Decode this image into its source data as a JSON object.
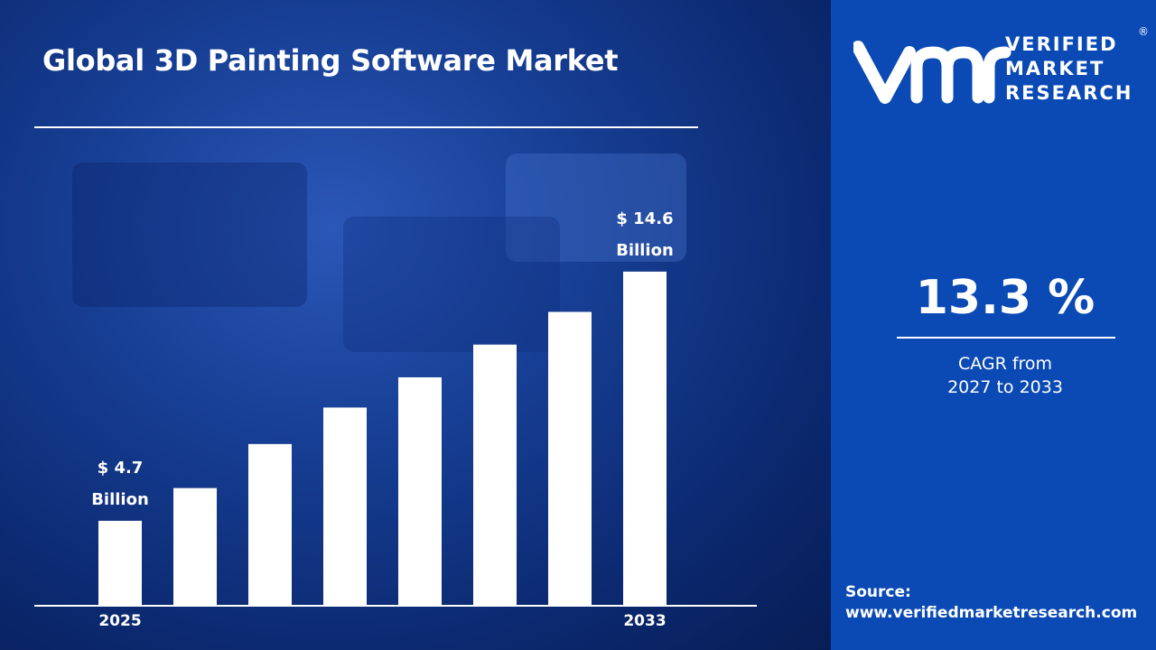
{
  "title": "Global 3D Painting Software Market",
  "logo": {
    "line1": "VERIFIED",
    "line2": "MARKET",
    "line3": "RESEARCH",
    "mark": "®"
  },
  "cagr": {
    "value": "13.3 %",
    "label_line1": "CAGR from",
    "label_line2": "2027 to 2033"
  },
  "source": {
    "label": "Source:",
    "url": "www.verifiedmarketresearch.com"
  },
  "colors": {
    "background": "#173f95",
    "panel": "#0b4ab4",
    "bars": "#ffffff"
  },
  "chart_data": {
    "type": "bar",
    "title": "Global 3D Painting Software Market",
    "categories": [
      "2025",
      "",
      "",
      "",
      "",
      "",
      "",
      "2033"
    ],
    "values": [
      4.7,
      6.0,
      7.75,
      9.2,
      10.4,
      11.7,
      13.0,
      14.6
    ],
    "unit": "USD Billion",
    "data_labels": [
      {
        "index": 0,
        "line1": "$ 4.7",
        "line2": "Billion"
      },
      {
        "index": 7,
        "line1": "$ 14.6",
        "line2": "Billion"
      }
    ],
    "grid": false,
    "xlabel": "",
    "ylabel": ""
  }
}
